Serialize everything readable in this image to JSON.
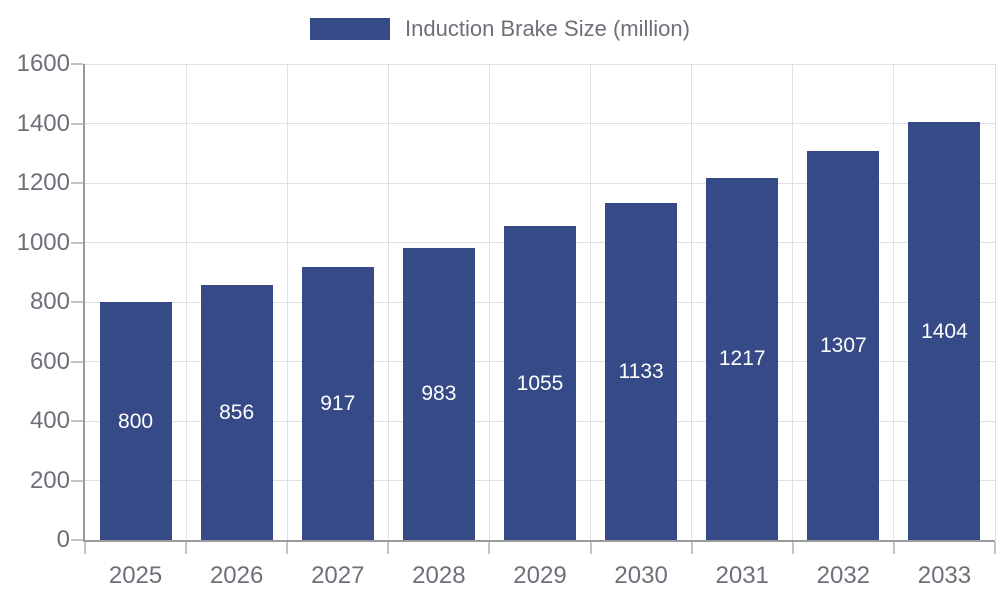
{
  "chart_data": {
    "type": "bar",
    "title": "Induction Brake Size (million)",
    "categories": [
      "2025",
      "2026",
      "2027",
      "2028",
      "2029",
      "2030",
      "2031",
      "2032",
      "2033"
    ],
    "series": [
      {
        "name": "Induction Brake Size (million)",
        "color": "#354a86",
        "values": [
          800,
          856,
          917,
          983,
          1055,
          1133,
          1217,
          1307,
          1404
        ]
      }
    ],
    "xlabel": "",
    "ylabel": "",
    "ylim": [
      0,
      1600
    ],
    "yticks": [
      0,
      200,
      400,
      600,
      800,
      1000,
      1200,
      1400,
      1600
    ],
    "grid": true,
    "legend_position": "top",
    "value_labels_position": "inside-middle",
    "value_label_color": "#ffffff"
  }
}
